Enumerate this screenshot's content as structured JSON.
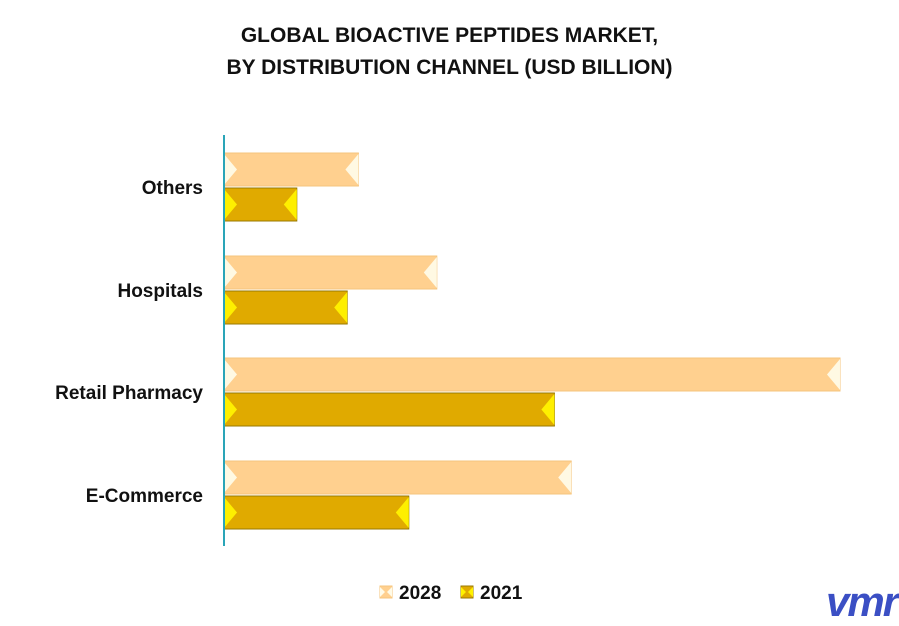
{
  "chart_data": {
    "type": "bar",
    "orientation": "horizontal",
    "title_lines": [
      "GLOBAL BIOACTIVE PEPTIDES MARKET,",
      "BY DISTRIBUTION CHANNEL (USD BILLION)"
    ],
    "categories": [
      "Others",
      "Hospitals",
      "Retail Pharmacy",
      "E-Commerce"
    ],
    "series": [
      {
        "name": "2028",
        "values": [
          2.4,
          3.8,
          11.0,
          6.2
        ]
      },
      {
        "name": "2021",
        "values": [
          1.3,
          2.2,
          5.9,
          3.3
        ]
      }
    ],
    "xlim": [
      0,
      11.5
    ],
    "grid": false,
    "legend_position": "bottom-center",
    "colors": {
      "2028": "#FFD08F",
      "2021": "#E0AA00",
      "axis": "#2AA5B8"
    }
  },
  "brand": {
    "logo_text": "vmr",
    "logo_color": "#3B4FC4"
  }
}
